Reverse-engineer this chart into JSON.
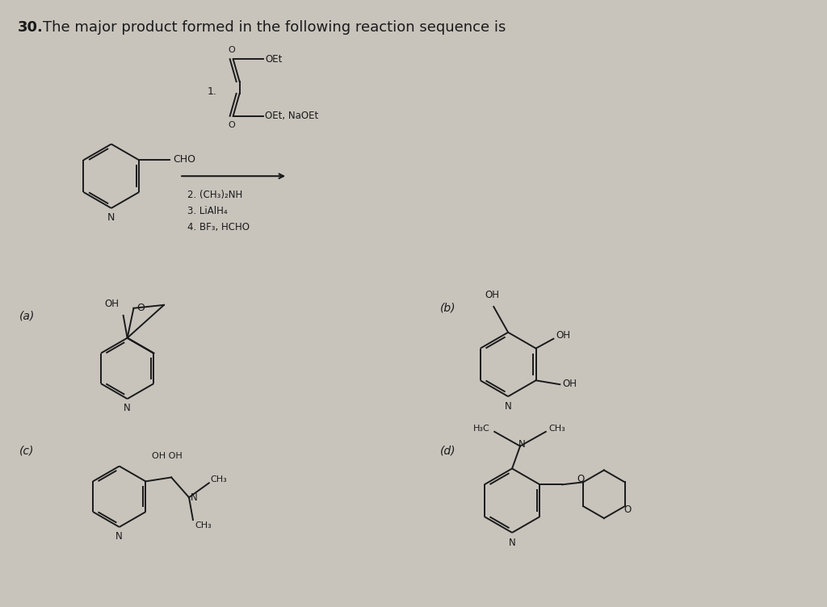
{
  "title_num": "30.",
  "title_text": "  The major product formed in the following reaction sequence is",
  "title_fontsize": 13,
  "bg_color": "#c8c4bc",
  "text_color": "#1a1a1a",
  "step2": "2. (CH₃)₂NH",
  "step3": "3. LiAlH₄",
  "step4": "4. BF₃, HCHO",
  "label_a": "(a)",
  "label_b": "(b)",
  "label_c": "(c)",
  "label_d": "(d)",
  "CHO": "CHO",
  "OEt": "OEt",
  "OEt_NaOEt": "OEt, NaOEt",
  "N": "N",
  "OH": "OH",
  "O": "O",
  "CH3": "CH₃",
  "H3C": "H₃C",
  "OH_OH": "OH OH"
}
